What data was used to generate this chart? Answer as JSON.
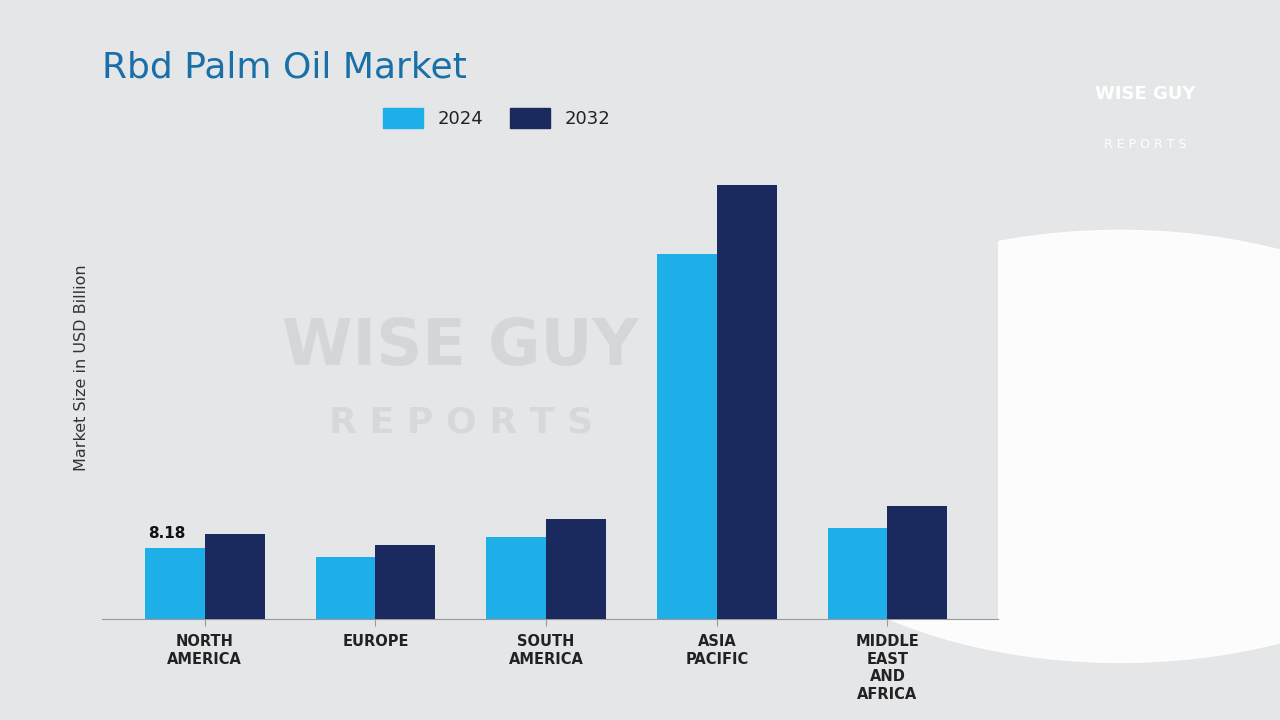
{
  "title": "Rbd Palm Oil Market",
  "ylabel": "Market Size in USD Billion",
  "categories": [
    "NORTH\nAMERICA",
    "EUROPE",
    "SOUTH\nAMERICA",
    "ASIA\nPACIFIC",
    "MIDDLE\nEAST\nAND\nAFRICA"
  ],
  "values_2024": [
    8.18,
    7.2,
    9.5,
    42.0,
    10.5
  ],
  "values_2032": [
    9.8,
    8.5,
    11.5,
    50.0,
    13.0
  ],
  "color_2024": "#1EAEE8",
  "color_2032": "#1A2A5E",
  "background_color": "#E4E6E8",
  "sidebar_color": "#1A2A5E",
  "title_color": "#1A6FA8",
  "annotation_label": "8.18",
  "annotation_category_idx": 0,
  "bar_width": 0.35,
  "legend_2024": "2024",
  "legend_2032": "2032",
  "ylim_max": 58
}
